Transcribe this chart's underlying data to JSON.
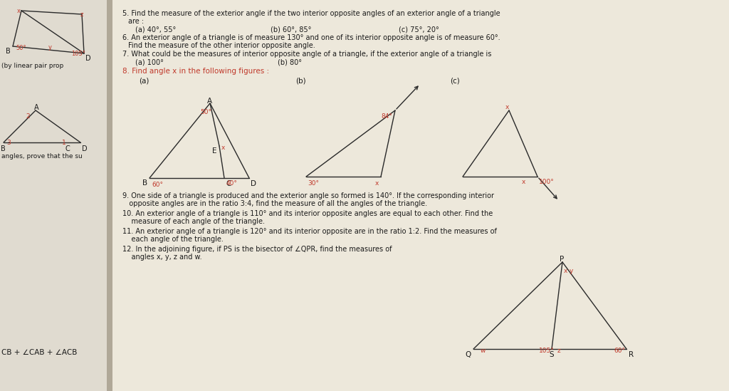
{
  "bg_color": "#c8bfaa",
  "page_bg": "#ede8db",
  "left_bg": "#e0dbd0",
  "spine_color": "#b0a898",
  "text_color": "#1a1a1a",
  "red_color": "#c0392b",
  "line_color": "#2a2a2a",
  "q5_line1": "5. Find the measure of the exterior angle if the two interior opposite angles of an exterior angle of a triangle",
  "q5_line2": "are :",
  "q5_a": "(a) 40°, 55°",
  "q5_b": "(b) 60°, 85°",
  "q5_c": "(c) 75°, 20°",
  "q6_line1": "6. An exterior angle of a triangle is of measure 130° and one of its interior opposite angle is of measure 60°.",
  "q6_line2": "Find the measure of the other interior opposite angle.",
  "q7_line1": "7. What could be the measures of interior opposite angle of a triangle, if the exterior angle of a triangle is",
  "q7_a": "(a) 100°",
  "q7_b": "(b) 80°",
  "q8_header": "8. Find angle x in the following figures :",
  "q9_line1": "9. One side of a triangle is produced and the exterior angle so formed is 140°. If the corresponding interior",
  "q9_line2": "   opposite angles are in the ratio 3:4, find the measure of all the angles of the triangle.",
  "q10_line1": "10. An exterior angle of a triangle is 110° and its interior opposite angles are equal to each other. Find the",
  "q10_line2": "    measure of each angle of the triangle.",
  "q11_line1": "11. An exterior angle of a triangle is 120° and its interior opposite are in the ratio 1:2. Find the measures of",
  "q11_line2": "    each angle of the triangle.",
  "q12_line1": "12. In the adjoining figure, if PS is the bisector of ∠QPR, find the measures of",
  "q12_line2": "    angles x, y, z and w.",
  "left_text1": "(by linear pair prop",
  "left_text2": "angles, prove that the su",
  "left_text3": "CB + ∠CAB + ∠ACB"
}
